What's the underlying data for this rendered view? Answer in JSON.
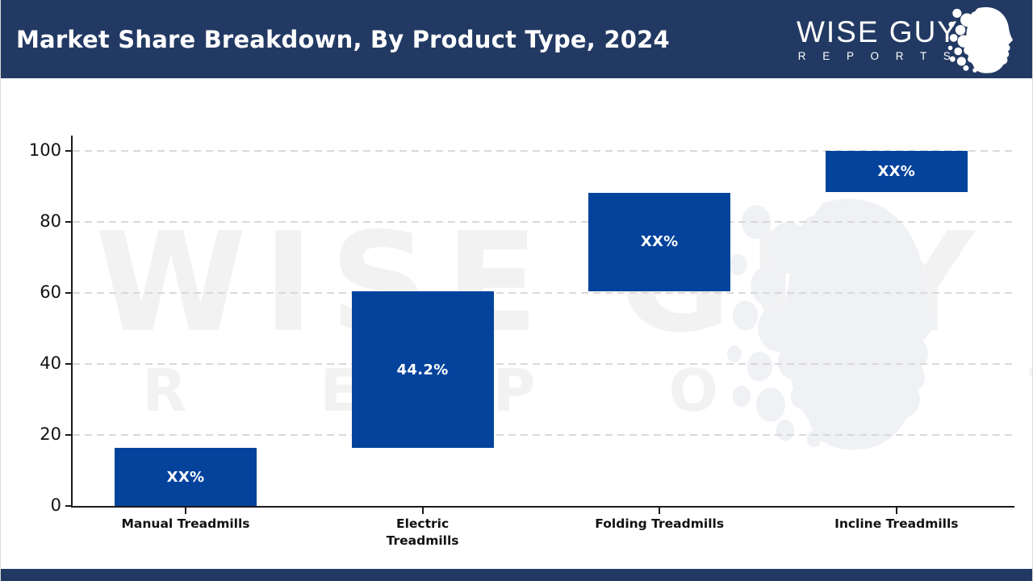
{
  "header": {
    "title": "Market Share Breakdown, By Product Type, 2024",
    "logo": {
      "line1": "WISE GUY",
      "line2": "R E P O R T S"
    }
  },
  "watermark": {
    "line1": "WISE GUY",
    "line2": "R E P O R T S"
  },
  "colors": {
    "header_bg": "#223a63",
    "footer_bg": "#223a63",
    "bar": "#04439c",
    "grid": "#d9d9d9",
    "axis": "#1a1a1a",
    "bar_label_text": "#ffffff",
    "tick_text": "#111111",
    "watermark_text": "#f2f2f2",
    "watermark_head": "#eff1f4"
  },
  "chart_data": {
    "type": "bar",
    "subtype": "floating-segment (waterfall style market share breakdown)",
    "title": "Market Share Breakdown, By Product Type, 2024",
    "categories": [
      "Manual Treadmills",
      "Electric\nTreadmills",
      "Folding Treadmills",
      "Incline Treadmills"
    ],
    "bars": [
      {
        "category": "Manual Treadmills",
        "start": 0,
        "end": 16.3,
        "label": "XX%"
      },
      {
        "category": "Electric Treadmills",
        "start": 16.3,
        "end": 60.5,
        "label": "44.2%"
      },
      {
        "category": "Folding Treadmills",
        "start": 60.5,
        "end": 88.3,
        "label": "XX%"
      },
      {
        "category": "Incline Treadmills",
        "start": 88.3,
        "end": 100,
        "label": "XX%"
      }
    ],
    "xlabel": "",
    "ylabel": "",
    "ylim": [
      0,
      100
    ],
    "yticks": [
      0,
      20,
      40,
      60,
      80,
      100
    ],
    "grid": "horizontal dashed",
    "legend": "none"
  }
}
